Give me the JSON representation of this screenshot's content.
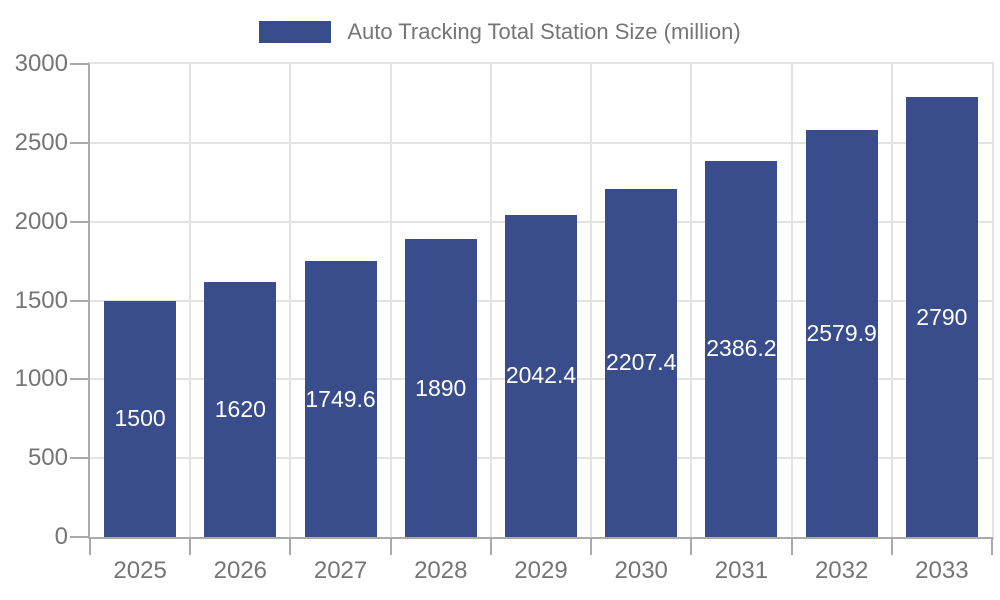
{
  "legend": {
    "label": "Auto Tracking Total Station Size (million)"
  },
  "chart_data": {
    "type": "bar",
    "title": "Auto Tracking Total Station Size (million)",
    "categories": [
      "2025",
      "2026",
      "2027",
      "2028",
      "2029",
      "2030",
      "2031",
      "2032",
      "2033"
    ],
    "series": [
      {
        "name": "Auto Tracking Total Station Size (million)",
        "values": [
          1500,
          1620,
          1749.6,
          1890,
          2042.4,
          2207.4,
          2386.2,
          2579.9,
          2790
        ],
        "value_labels": [
          "1500",
          "1620",
          "1749.6",
          "1890",
          "2042.4",
          "2207.4",
          "2386.2",
          "2579.9",
          "2790"
        ]
      }
    ],
    "xlabel": "",
    "ylabel": "",
    "ylim": [
      0,
      3000
    ],
    "yticks": [
      0,
      500,
      1000,
      1500,
      2000,
      2500,
      3000
    ],
    "ytick_labels": [
      "0",
      "500",
      "1000",
      "1500",
      "2000",
      "2500",
      "3000"
    ],
    "grid": true,
    "legend_position": "top-center",
    "colors": {
      "bar": "#394C8B",
      "bar_label_text": "#ffffff",
      "axis_text": "#757575",
      "legend_text": "#757575",
      "gridline": "#e3e3e3",
      "axis_line": "#aaaaaa"
    }
  }
}
